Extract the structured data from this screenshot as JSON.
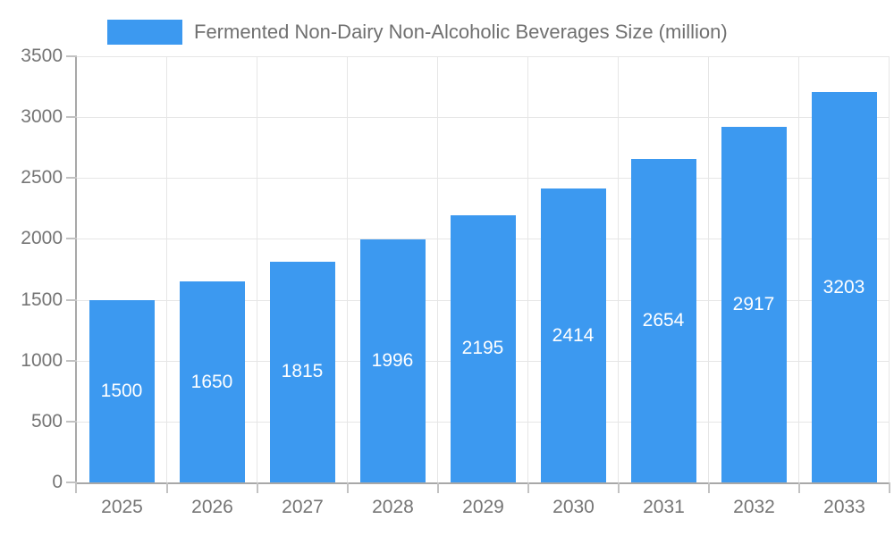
{
  "legend": {
    "label": "Fermented Non-Dairy Non-Alcoholic Beverages Size (million)"
  },
  "chart_data": {
    "type": "bar",
    "title": "Fermented Non-Dairy Non-Alcoholic Beverages Size (million)",
    "categories": [
      "2025",
      "2026",
      "2027",
      "2028",
      "2029",
      "2030",
      "2031",
      "2032",
      "2033"
    ],
    "series": [
      {
        "name": "Fermented Non-Dairy Non-Alcoholic Beverages Size (million)",
        "values": [
          1500,
          1650,
          1815,
          1996,
          2195,
          2414,
          2654,
          2917,
          3203
        ]
      }
    ],
    "value_labels": [
      "1500",
      "1650",
      "1815",
      "1996",
      "2195",
      "2414",
      "2654",
      "2917",
      "3203"
    ],
    "xlabel": "",
    "ylabel": "",
    "ylim": [
      0,
      3500
    ],
    "ytick_step": 500,
    "yticks": [
      0,
      500,
      1000,
      1500,
      2000,
      2500,
      3000,
      3500
    ],
    "grid": true,
    "legend_position": "top",
    "colors": {
      "bar": "#3C99F0",
      "value_label": "#ffffff",
      "axis_line": "#a8a8a8",
      "grid_line": "#e6e6e6",
      "tick_mark": "#c2c2c2",
      "tick_label": "#757575",
      "legend_text": "#707070",
      "background": "#ffffff"
    }
  }
}
